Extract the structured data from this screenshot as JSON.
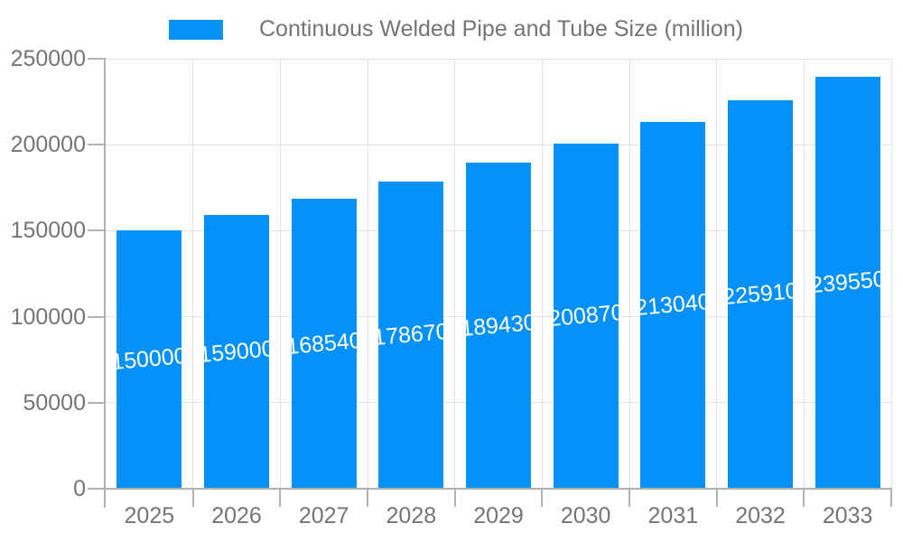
{
  "legend": {
    "series_label": "Continuous Welded Pipe and Tube Size (million)"
  },
  "chart_data": {
    "type": "bar",
    "title": "Continuous Welded Pipe and Tube Size (million)",
    "categories": [
      "2025",
      "2026",
      "2027",
      "2028",
      "2029",
      "2030",
      "2031",
      "2032",
      "2033"
    ],
    "values": [
      150000,
      159000,
      168540,
      178670,
      189430,
      200870,
      213040,
      225910,
      239550
    ],
    "value_labels": [
      "150000",
      "159000",
      "168540",
      "178670",
      "189430",
      "200870",
      "213040",
      "225910",
      "239550"
    ],
    "xlabel": "",
    "ylabel": "",
    "ylim": [
      0,
      250000
    ],
    "ytick_step": 50000,
    "ytick_labels": [
      "0",
      "50000",
      "100000",
      "150000",
      "200000",
      "250000"
    ],
    "grid": "on",
    "legend_position": "top",
    "colors": {
      "bar": "#0591f7",
      "axis_text": "#757575",
      "gridline": "#e4e4e4",
      "axis_line": "#b0b0b0",
      "value_label": "#ffffff",
      "background": "#ffffff"
    }
  }
}
